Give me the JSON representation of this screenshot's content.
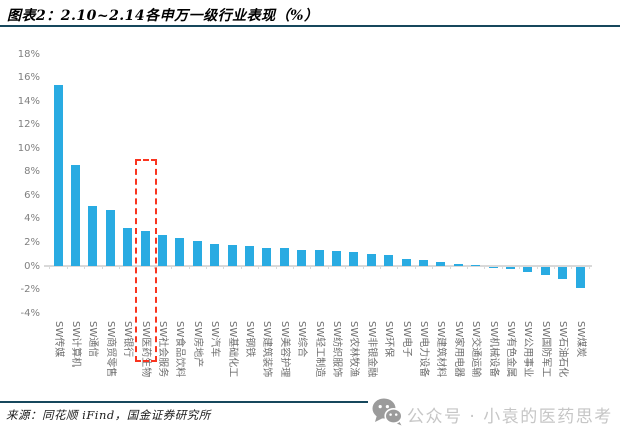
{
  "title": {
    "text": "图表2：2.10~2.14各申万一级行业表现（%）"
  },
  "footer": {
    "source": "来源：同花顺 iFind，国金证券研究所"
  },
  "watermark": {
    "icon": "wechat-icon",
    "text": "公众号 · 小袁的医药思考"
  },
  "colors": {
    "bar": "#29ABE2",
    "highlight_box": "#F9341F",
    "rule": "#16475C",
    "axis_line": "#D9D9D9",
    "axis_label": "#7F7F7F",
    "category_label": "#6E6E6E",
    "title_text": "#000000",
    "watermark_text": "#C6C6C6",
    "watermark_icon": "#9B9B9B"
  },
  "chart_data": {
    "type": "bar",
    "title": "图表2：2.10~2.14各申万一级行业表现（%）",
    "xlabel": "",
    "ylabel": "",
    "unit": "%",
    "ylim": [
      -4,
      18
    ],
    "yticks": [
      18,
      16,
      14,
      12,
      10,
      8,
      6,
      4,
      2,
      0,
      -2,
      -4
    ],
    "grid": false,
    "legend": null,
    "highlight_category": "SW医药生物",
    "highlight_index": 5,
    "categories": [
      "SW传媒",
      "SW计算机",
      "SW通信",
      "SW商贸零售",
      "SW银行",
      "SW医药生物",
      "SW社会服务",
      "SW食品饮料",
      "SW房地产",
      "SW汽车",
      "SW基础化工",
      "SW钢铁",
      "SW建筑装饰",
      "SW美容护理",
      "SW综合",
      "SW轻工制造",
      "SW纺织服饰",
      "SW农林牧渔",
      "SW非银金融",
      "SW环保",
      "SW电子",
      "SW电力设备",
      "SW建筑材料",
      "SW家用电器",
      "SW交通运输",
      "SW机械设备",
      "SW有色金属",
      "SW公用事业",
      "SW国防军工",
      "SW石油石化",
      "SW煤炭"
    ],
    "values": [
      15.4,
      8.6,
      5.1,
      4.8,
      3.2,
      3.0,
      2.6,
      2.4,
      2.1,
      1.9,
      1.8,
      1.7,
      1.5,
      1.5,
      1.4,
      1.4,
      1.3,
      1.2,
      1.0,
      0.9,
      0.6,
      0.5,
      0.3,
      0.2,
      0.1,
      -0.1,
      -0.2,
      -0.4,
      -0.7,
      -1.0,
      -1.8
    ]
  }
}
